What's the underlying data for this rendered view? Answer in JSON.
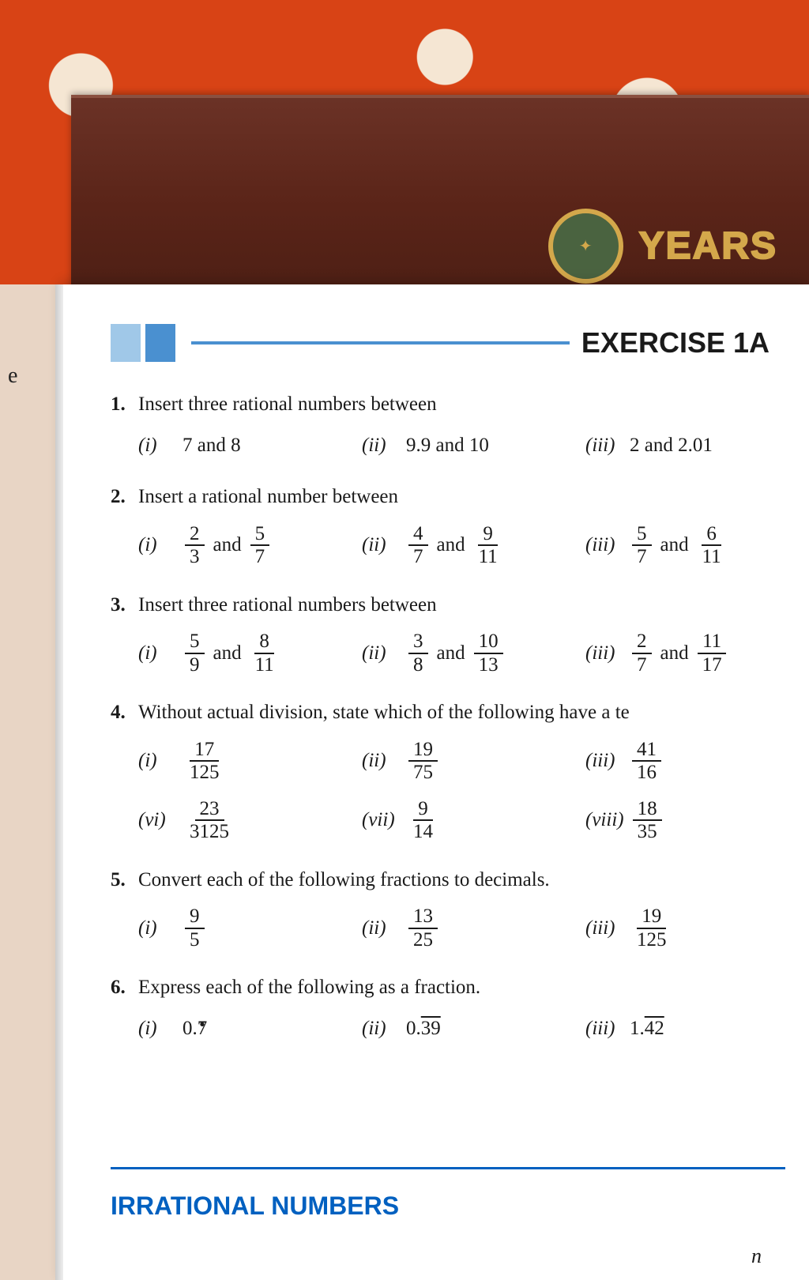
{
  "background": {
    "fabric_color": "#d84315",
    "dot_color": "#f5e6d3",
    "book_cover_color": "#5a2a1e",
    "logo_text": "YEARS",
    "logo_color": "#d4a84b"
  },
  "side_letter": "e",
  "header": {
    "title": "EXERCISE 1A",
    "tab_colors": [
      "#a0c8e8",
      "#4a90d0"
    ],
    "line_color": "#4a90d0"
  },
  "questions": [
    {
      "num": "1.",
      "text": "Insert three rational numbers between",
      "parts": [
        {
          "label": "(i)",
          "content": "7 and 8"
        },
        {
          "label": "(ii)",
          "content": "9.9 and 10"
        },
        {
          "label": "(iii)",
          "content": "2 and 2.01"
        }
      ]
    },
    {
      "num": "2.",
      "text": "Insert a rational number between",
      "parts": [
        {
          "label": "(i)",
          "frac1": {
            "n": "2",
            "d": "3"
          },
          "conj": "and",
          "frac2": {
            "n": "5",
            "d": "7"
          }
        },
        {
          "label": "(ii)",
          "frac1": {
            "n": "4",
            "d": "7"
          },
          "conj": "and",
          "frac2": {
            "n": "9",
            "d": "11"
          }
        },
        {
          "label": "(iii)",
          "frac1": {
            "n": "5",
            "d": "7"
          },
          "conj": "and",
          "frac2": {
            "n": "6",
            "d": "11"
          }
        }
      ]
    },
    {
      "num": "3.",
      "text": "Insert three rational numbers between",
      "parts": [
        {
          "label": "(i)",
          "frac1": {
            "n": "5",
            "d": "9"
          },
          "conj": "and",
          "frac2": {
            "n": "8",
            "d": "11"
          }
        },
        {
          "label": "(ii)",
          "frac1": {
            "n": "3",
            "d": "8"
          },
          "conj": "and",
          "frac2": {
            "n": "10",
            "d": "13"
          }
        },
        {
          "label": "(iii)",
          "frac1": {
            "n": "2",
            "d": "7"
          },
          "conj": "and",
          "frac2": {
            "n": "11",
            "d": "17"
          }
        }
      ]
    },
    {
      "num": "4.",
      "text": "Without actual division, state which of the following have a te",
      "parts": [
        {
          "label": "(i)",
          "frac1": {
            "n": "17",
            "d": "125"
          }
        },
        {
          "label": "(ii)",
          "frac1": {
            "n": "19",
            "d": "75"
          }
        },
        {
          "label": "(iii)",
          "frac1": {
            "n": "41",
            "d": "16"
          }
        },
        {
          "label": "(vi)",
          "frac1": {
            "n": "23",
            "d": "3125"
          }
        },
        {
          "label": "(vii)",
          "frac1": {
            "n": "9",
            "d": "14"
          }
        },
        {
          "label": "(viii)",
          "frac1": {
            "n": "18",
            "d": "35"
          }
        }
      ]
    },
    {
      "num": "5.",
      "text": "Convert each of the following fractions to decimals.",
      "parts": [
        {
          "label": "(i)",
          "frac1": {
            "n": "9",
            "d": "5"
          }
        },
        {
          "label": "(ii)",
          "frac1": {
            "n": "13",
            "d": "25"
          }
        },
        {
          "label": "(iii)",
          "frac1": {
            "n": "19",
            "d": "125"
          }
        }
      ]
    },
    {
      "num": "6.",
      "text": "Express each of the following as a fraction.",
      "parts": [
        {
          "label": "(i)",
          "decimal_pre": "0.",
          "decimal_dot": "7"
        },
        {
          "label": "(ii)",
          "decimal_pre": "0.",
          "decimal_bar": "39"
        },
        {
          "label": "(iii)",
          "decimal_pre": "1.",
          "decimal_bar": "42"
        }
      ]
    }
  ],
  "section_heading": "IRRATIONAL NUMBERS",
  "divider_color": "#0060c0",
  "footer_var": "n"
}
